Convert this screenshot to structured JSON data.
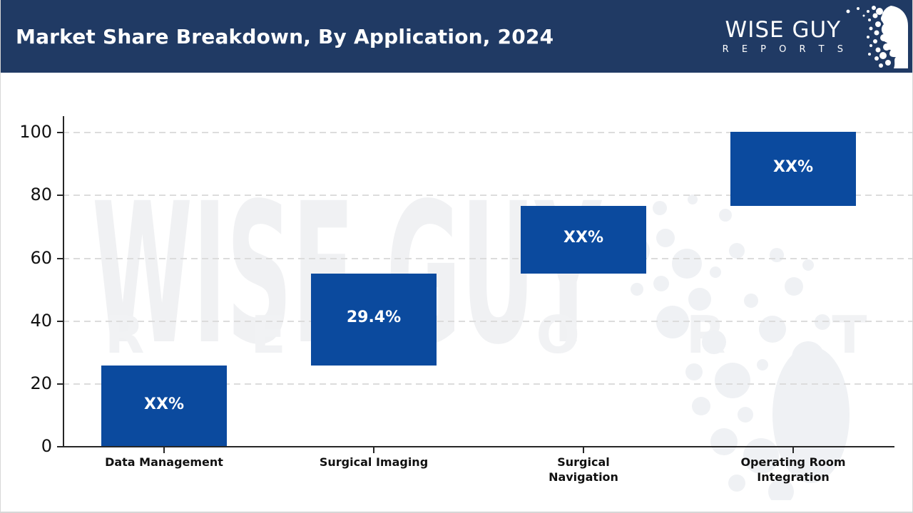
{
  "header": {
    "title": "Market Share Breakdown, By Application, 2024",
    "bg_color": "#203a64",
    "logo": {
      "line1": "WISE GUY",
      "line2": "R E P O R T S"
    }
  },
  "watermark": {
    "line1": "WISE GUY",
    "line2": "R E P O R T S"
  },
  "chart_data": {
    "type": "bar",
    "subtype": "waterfall-floating-segments",
    "title": "Market Share Breakdown, By Application, 2024",
    "categories": [
      "Data Management",
      "Surgical Imaging",
      "Surgical\nNavigation",
      "Operating Room\nIntegration"
    ],
    "series": [
      {
        "name": "Market share (%)",
        "segments": [
          {
            "category": "Data Management",
            "start": 0,
            "end": 25.6,
            "value_label": "XX%"
          },
          {
            "category": "Surgical Imaging",
            "start": 25.6,
            "end": 55.0,
            "value_label": "29.4%"
          },
          {
            "category": "Surgical Navigation",
            "start": 55.0,
            "end": 76.4,
            "value_label": "XX%"
          },
          {
            "category": "Operating Room Integration",
            "start": 76.4,
            "end": 100,
            "value_label": "XX%"
          }
        ]
      }
    ],
    "yticks": [
      0,
      20,
      40,
      60,
      80,
      100
    ],
    "ylim": [
      0,
      105
    ],
    "xlabel": "",
    "ylabel": "",
    "grid": "horizontal-dashed",
    "legend": "none",
    "bar_color": "#0b4a9e",
    "bar_label_color": "#ffffff",
    "axis_color": "#262626"
  }
}
